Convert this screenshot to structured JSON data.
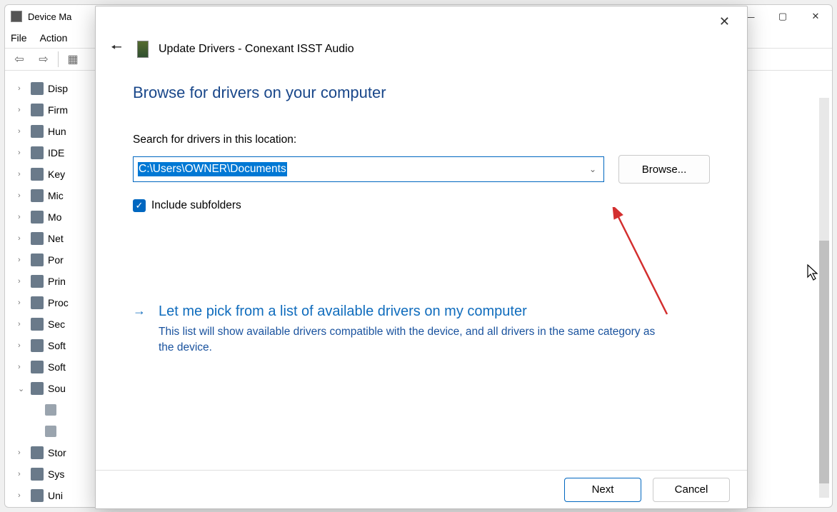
{
  "bg": {
    "title": "Device Ma",
    "menu": {
      "file": "File",
      "action": "Action"
    },
    "tree": [
      {
        "label": "Disp",
        "caret": ">"
      },
      {
        "label": "Firm",
        "caret": ">"
      },
      {
        "label": "Hun",
        "caret": ">"
      },
      {
        "label": "IDE",
        "caret": ">"
      },
      {
        "label": "Key",
        "caret": ">"
      },
      {
        "label": "Mic",
        "caret": ">"
      },
      {
        "label": "Mo",
        "caret": ">"
      },
      {
        "label": "Net",
        "caret": ">"
      },
      {
        "label": "Por",
        "caret": ">"
      },
      {
        "label": "Prin",
        "caret": ">"
      },
      {
        "label": "Proc",
        "caret": ">"
      },
      {
        "label": "Sec",
        "caret": ">"
      },
      {
        "label": "Soft",
        "caret": ">"
      },
      {
        "label": "Soft",
        "caret": ">"
      },
      {
        "label": "Sou",
        "caret": "v",
        "children": [
          {},
          {}
        ]
      },
      {
        "label": "Stor",
        "caret": ">"
      },
      {
        "label": "Sys",
        "caret": ">"
      },
      {
        "label": "Uni",
        "caret": ">"
      }
    ]
  },
  "dialog": {
    "title": "Update Drivers - Conexant ISST Audio",
    "heading": "Browse for drivers on your computer",
    "search_label": "Search for drivers in this location:",
    "path": "C:\\Users\\OWNER\\Documents",
    "browse": "Browse...",
    "include_subfolders": "Include subfolders",
    "pick_title": "Let me pick from a list of available drivers on my computer",
    "pick_sub": "This list will show available drivers compatible with the device, and all drivers in the same category as the device.",
    "next": "Next",
    "cancel": "Cancel"
  },
  "colors": {
    "accent": "#0067c0",
    "heading": "#19478a",
    "link": "#0f6cbd",
    "arrow": "#d32f2f"
  }
}
